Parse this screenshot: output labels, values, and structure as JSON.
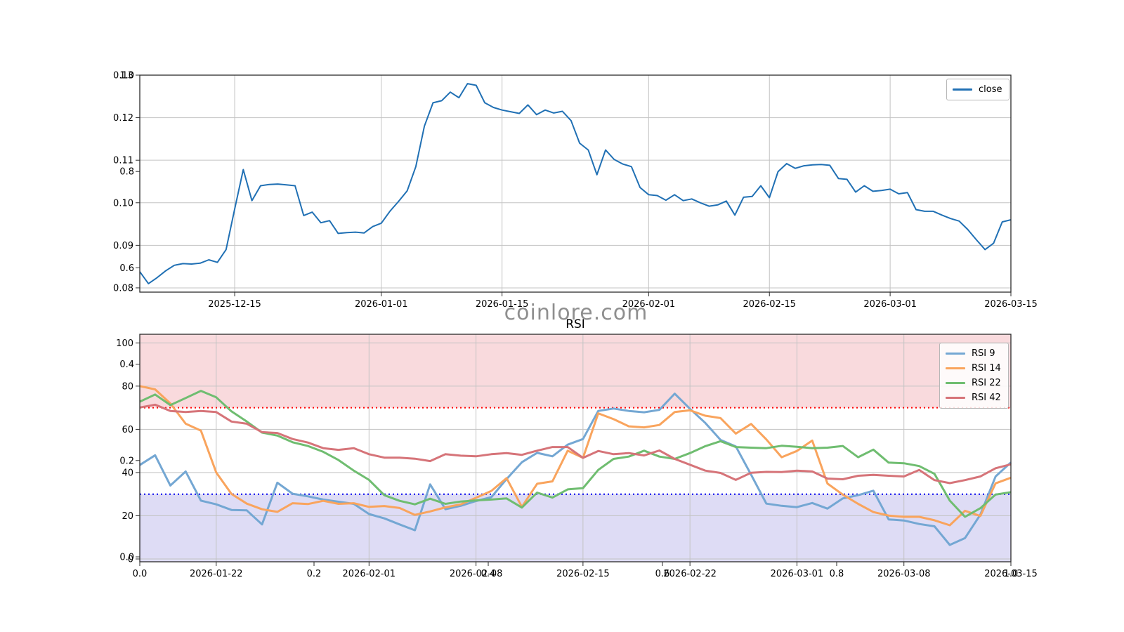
{
  "watermark": "coinlore.com",
  "phantom_axis": {
    "y_tick_labels": [
      "1.0",
      "0.8",
      "0.6",
      "0.4",
      "0.2",
      "0.0"
    ],
    "x_tick_labels": [
      "0.0",
      "0.2",
      "0.4",
      "0.6",
      "0.8",
      "1.0"
    ]
  },
  "chart_data": [
    {
      "type": "line",
      "name": "price-close",
      "title": "",
      "x_start_date": "2025-12-04",
      "x_freq": "daily",
      "x_tick_labels": [
        "2025-12-15",
        "2026-01-01",
        "2026-01-15",
        "2026-02-01",
        "2026-02-15",
        "2026-03-01",
        "2026-03-15"
      ],
      "y_tick_labels": [
        "0.08",
        "0.09",
        "0.10",
        "0.11",
        "0.12",
        "0.13"
      ],
      "y_ticks": [
        0.08,
        0.09,
        0.1,
        0.11,
        0.12,
        0.13
      ],
      "ylim": [
        0.079,
        0.13
      ],
      "grid": true,
      "legend_position": "upper right",
      "series": [
        {
          "name": "close",
          "color": "#2070b4",
          "width": 2,
          "values": [
            0.0838,
            0.081,
            0.0824,
            0.084,
            0.0853,
            0.0857,
            0.0856,
            0.0858,
            0.0866,
            0.086,
            0.089,
            0.0985,
            0.1078,
            0.1005,
            0.104,
            0.1043,
            0.1044,
            0.1042,
            0.104,
            0.097,
            0.0978,
            0.0953,
            0.0958,
            0.0928,
            0.093,
            0.0931,
            0.0929,
            0.0944,
            0.0952,
            0.098,
            0.1003,
            0.1028,
            0.1085,
            0.118,
            0.1235,
            0.124,
            0.126,
            0.1247,
            0.128,
            0.1276,
            0.1235,
            0.1224,
            0.1218,
            0.1214,
            0.121,
            0.123,
            0.1207,
            0.1218,
            0.1211,
            0.1215,
            0.1193,
            0.114,
            0.1124,
            0.1066,
            0.1124,
            0.1102,
            0.1091,
            0.1085,
            0.1036,
            0.1019,
            0.1017,
            0.1006,
            0.1019,
            0.1005,
            0.1009,
            0.1,
            0.0992,
            0.0995,
            0.1004,
            0.0971,
            0.1013,
            0.1015,
            0.104,
            0.1012,
            0.1073,
            0.1092,
            0.1081,
            0.1087,
            0.1089,
            0.109,
            0.1088,
            0.1057,
            0.1055,
            0.1025,
            0.104,
            0.1027,
            0.1029,
            0.1032,
            0.1021,
            0.1024,
            0.0984,
            0.098,
            0.098,
            0.0971,
            0.0963,
            0.0957,
            0.0937,
            0.0913,
            0.089,
            0.0905,
            0.0955,
            0.096
          ]
        }
      ]
    },
    {
      "type": "line",
      "name": "rsi",
      "title": "RSI",
      "x_start_date": "2026-01-17",
      "x_freq": "daily",
      "x_tick_labels": [
        "2026-01-22",
        "2026-02-01",
        "2026-02-08",
        "2026-02-15",
        "2026-02-22",
        "2026-03-01",
        "2026-03-08",
        "2026-03-15"
      ],
      "y_tick_labels": [
        "0",
        "20",
        "40",
        "60",
        "80",
        "100"
      ],
      "y_ticks": [
        0,
        20,
        40,
        60,
        80,
        100
      ],
      "ylim": [
        -1.3,
        104
      ],
      "grid": true,
      "overbought_level": 70,
      "oversold_level": 30,
      "overbought_line_color": "#ff0000",
      "oversold_line_color": "#0000ee",
      "overbought_band_color": "#f9dadd",
      "oversold_band_color": "#dedcf5",
      "legend_position": "upper right",
      "series": [
        {
          "name": "RSI 9",
          "color": "#74a7d3",
          "width": 3,
          "values": [
            43.5,
            48.0,
            34.0,
            40.5,
            27.0,
            25.3,
            22.7,
            22.5,
            16.0,
            35.3,
            30.2,
            29.0,
            27.5,
            26.5,
            25.5,
            20.8,
            18.8,
            16.0,
            13.3,
            34.5,
            23.0,
            24.6,
            26.8,
            28.6,
            37.0,
            44.8,
            49.1,
            47.5,
            52.9,
            55.5,
            68.5,
            69.6,
            68.5,
            67.9,
            69.0,
            76.5,
            69.5,
            63.0,
            55.1,
            52.1,
            39.0,
            25.6,
            24.6,
            24.0,
            25.9,
            23.3,
            28.0,
            29.5,
            31.6,
            18.3,
            17.8,
            16.2,
            15.1,
            6.5,
            9.7,
            20.5,
            38.2,
            44.7
          ]
        },
        {
          "name": "RSI 14",
          "color": "#f9a45d",
          "width": 3,
          "values": [
            80.0,
            78.5,
            72.0,
            62.6,
            59.4,
            40.0,
            30.1,
            25.6,
            23.0,
            21.8,
            25.8,
            25.4,
            26.9,
            25.5,
            25.8,
            24.1,
            24.5,
            23.6,
            20.4,
            22.0,
            23.9,
            25.3,
            28.3,
            31.5,
            37.4,
            24.1,
            34.8,
            35.9,
            50.1,
            46.8,
            67.4,
            64.7,
            61.4,
            60.9,
            62.0,
            68.0,
            68.8,
            66.3,
            65.2,
            58.0,
            62.5,
            55.3,
            47.1,
            50.0,
            54.8,
            34.9,
            29.8,
            25.5,
            21.7,
            20.1,
            19.5,
            19.5,
            17.9,
            15.6,
            22.3,
            19.9,
            35.0,
            37.6
          ]
        },
        {
          "name": "RSI 22",
          "color": "#6fbd70",
          "width": 3,
          "values": [
            72.8,
            76.1,
            71.2,
            74.5,
            77.8,
            74.8,
            68.3,
            63.6,
            58.5,
            57.1,
            54.0,
            52.3,
            49.6,
            45.8,
            40.9,
            36.6,
            29.5,
            26.9,
            25.3,
            27.9,
            25.5,
            26.6,
            27.1,
            27.5,
            28.0,
            23.8,
            30.7,
            28.4,
            32.2,
            32.8,
            41.2,
            46.3,
            47.4,
            50.1,
            47.4,
            46.3,
            49.0,
            52.2,
            54.5,
            51.8,
            51.5,
            51.3,
            52.4,
            51.9,
            51.3,
            51.5,
            52.3,
            47.1,
            50.6,
            44.6,
            44.3,
            43.0,
            39.4,
            27.0,
            19.5,
            23.5,
            29.8,
            30.9
          ]
        },
        {
          "name": "RSI 42",
          "color": "#d67479",
          "width": 3,
          "values": [
            70.1,
            71.4,
            68.5,
            68.0,
            68.5,
            68.0,
            63.6,
            62.6,
            58.7,
            58.3,
            55.5,
            53.9,
            51.3,
            50.5,
            51.3,
            48.5,
            46.9,
            46.9,
            46.4,
            45.3,
            48.5,
            47.8,
            47.5,
            48.5,
            49.0,
            48.2,
            50.1,
            51.8,
            51.8,
            46.8,
            50.0,
            48.5,
            49.0,
            47.9,
            50.2,
            46.3,
            43.6,
            40.9,
            39.8,
            36.6,
            39.9,
            40.3,
            40.2,
            40.9,
            40.5,
            37.2,
            36.9,
            38.5,
            38.9,
            38.5,
            38.2,
            41.2,
            36.5,
            35.1,
            36.5,
            38.2,
            42.0,
            43.8
          ]
        }
      ]
    }
  ]
}
